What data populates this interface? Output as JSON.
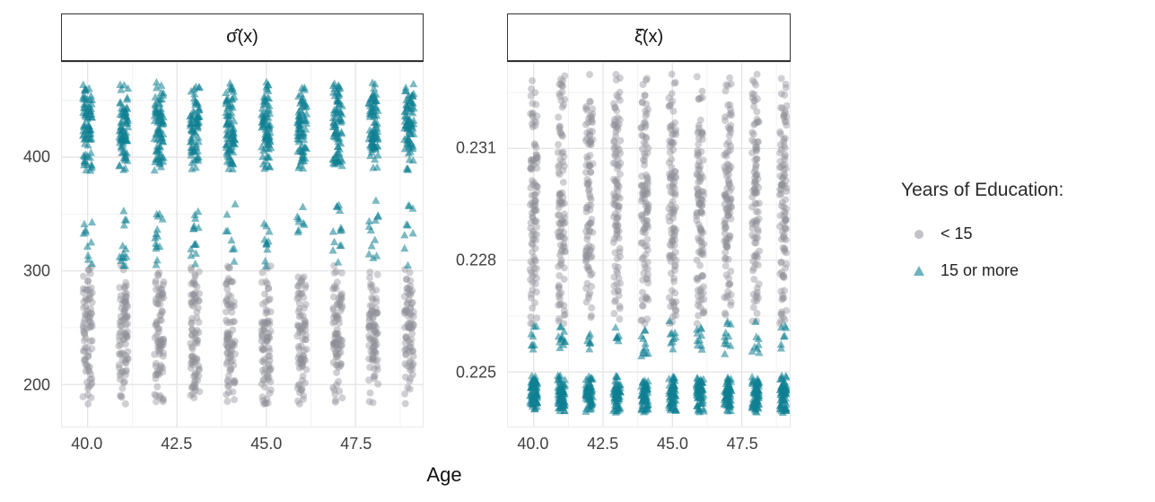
{
  "figure": {
    "xlabel": "Age"
  },
  "legend": {
    "title": "Years of Education:",
    "items": [
      {
        "label": "< 15",
        "series": "lt15",
        "shape": "circle"
      },
      {
        "label": "15 or more",
        "series": "ge15",
        "shape": "triangle"
      }
    ]
  },
  "colors": {
    "lt15": "#8f8f98",
    "ge15": "#0f7f92",
    "grid_major": "#e4e4e4",
    "grid_minor": "#f1f1f1",
    "strip_border": "#333333",
    "panel_border": "#e9e9e9",
    "text": "#404040"
  },
  "chart_data": [
    {
      "type": "scatter",
      "title": "σ̂(x)",
      "xlim": [
        39.28,
        49.38
      ],
      "ylim": [
        163,
        483
      ],
      "xtick_values": [
        40.0,
        42.5,
        45.0,
        47.5
      ],
      "xtick_labels": [
        "40.0",
        "42.5",
        "45.0",
        "47.5"
      ],
      "ytick_values": [
        200,
        300,
        400
      ],
      "ytick_labels": [
        "200",
        "300",
        "400"
      ],
      "x_minor": [
        41.25,
        43.75,
        46.25,
        48.75
      ],
      "y_minor": [
        250,
        350,
        450
      ],
      "ages": [
        40,
        41,
        42,
        43,
        44,
        45,
        46,
        47,
        48,
        49
      ],
      "jitter": 0.13,
      "clusters": [
        {
          "series": "lt15",
          "center": 243,
          "spread": 62,
          "min": 183,
          "max": 308,
          "count": 85
        },
        {
          "series": "ge15",
          "center": 427,
          "spread": 39,
          "min": 386,
          "max": 466,
          "count": 78
        },
        {
          "series": "ge15",
          "center": 332,
          "spread": 30,
          "min": 304,
          "max": 362,
          "count": 11
        }
      ]
    },
    {
      "type": "scatter",
      "title": "ξ̂(x)",
      "xlim": [
        39.07,
        49.23
      ],
      "ylim": [
        0.22354,
        0.23329
      ],
      "xtick_values": [
        40.0,
        42.5,
        45.0,
        47.5
      ],
      "xtick_labels": [
        "40.0",
        "42.5",
        "45.0",
        "47.5"
      ],
      "ytick_values": [
        0.225,
        0.228,
        0.231
      ],
      "ytick_labels": [
        "0.225",
        "0.228",
        "0.231"
      ],
      "x_minor": [
        41.25,
        43.75,
        46.25,
        48.75
      ],
      "y_minor": [
        0.2265,
        0.2295,
        0.2325
      ],
      "ages": [
        40,
        41,
        42,
        43,
        44,
        45,
        46,
        47,
        48,
        49
      ],
      "jitter": 0.13,
      "clusters": [
        {
          "series": "lt15",
          "center": 0.2296,
          "spread": 0.0034,
          "min": 0.2263,
          "max": 0.2331,
          "count": 105
        },
        {
          "series": "ge15",
          "center": 0.2259,
          "spread": 0.0005,
          "min": 0.2252,
          "max": 0.2264,
          "count": 9
        },
        {
          "series": "ge15",
          "center": 0.2244,
          "spread": 0.0005,
          "min": 0.2237,
          "max": 0.2249,
          "count": 62
        }
      ]
    }
  ]
}
